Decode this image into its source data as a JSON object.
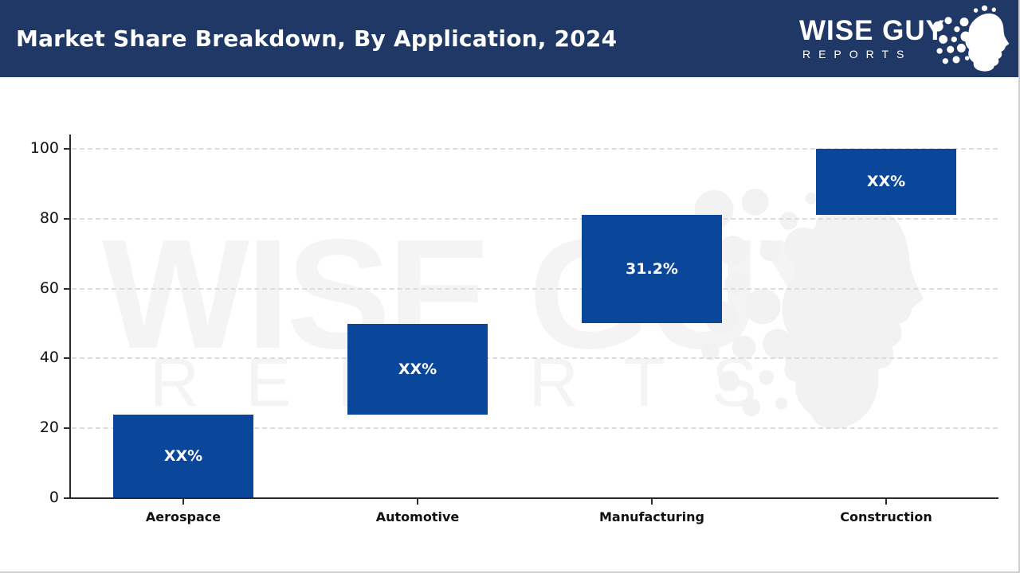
{
  "header": {
    "title": "Market Share Breakdown, By Application, 2024"
  },
  "logo": {
    "line1": "WISE GUY",
    "line2": "REPORTS"
  },
  "watermark": {
    "line1": "WISE GUY",
    "line2": "REPORTS"
  },
  "colors": {
    "header_bg": "#203866",
    "bar_blue": "#0a4699",
    "gridline": "#dcdcdc",
    "axis": "#2b2b2b",
    "watermark_gray": "#f4f4f4",
    "label_white": "#ffffff",
    "text_black": "#111111"
  },
  "chart_data": {
    "type": "bar",
    "variant": "floating-segment-waterfall",
    "title": "Market Share Breakdown, By Application, 2024",
    "categories": [
      "Aerospace",
      "Automotive",
      "Manufacturing",
      "Construction"
    ],
    "series": [
      {
        "name": "Market share (%)",
        "segments": [
          {
            "start": 0,
            "end": 24
          },
          {
            "start": 24,
            "end": 50
          },
          {
            "start": 50,
            "end": 81.2
          },
          {
            "start": 81.2,
            "end": 100
          }
        ],
        "values": [
          24,
          26,
          31.2,
          18.8
        ],
        "bar_labels": [
          "XX%",
          "XX%",
          "31.2%",
          "XX%"
        ]
      }
    ],
    "xlabel": "",
    "ylabel": "",
    "ylim": [
      0,
      100
    ],
    "yticks": [
      0,
      20,
      40,
      60,
      80,
      100
    ],
    "grid": "horizontal-dashed",
    "legend": "none"
  }
}
